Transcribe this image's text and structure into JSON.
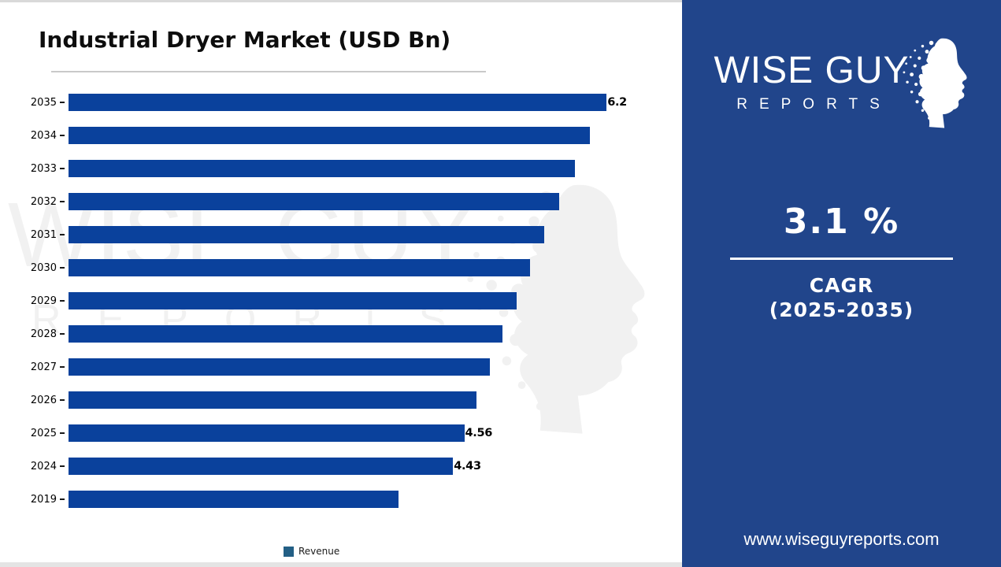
{
  "brand": {
    "line1": "WISE GUY",
    "line2": "REPORTS",
    "website": "www.wiseguyreports.com"
  },
  "panel": {
    "bg_color": "#21458b",
    "cagr_value": "3.1 %",
    "cagr_label": "CAGR",
    "cagr_period": "(2025-2035)"
  },
  "chart_data": {
    "type": "bar",
    "orientation": "horizontal",
    "title": "Industrial Dryer Market (USD Bn)",
    "xlabel": "",
    "ylabel": "",
    "categories": [
      "2035",
      "2034",
      "2033",
      "2032",
      "2031",
      "2030",
      "2029",
      "2028",
      "2027",
      "2026",
      "2025",
      "2024",
      "2019"
    ],
    "values": [
      6.2,
      6.01,
      5.83,
      5.65,
      5.48,
      5.32,
      5.16,
      5.0,
      4.85,
      4.7,
      4.56,
      4.43,
      3.8
    ],
    "value_labels": {
      "2035": "6.2",
      "2025": "4.56",
      "2024": "4.43"
    },
    "xlim": [
      0,
      6.65
    ],
    "grid": false,
    "bar_color": "#0a419c",
    "legend": {
      "label": "Revenue",
      "marker_color": "#235f85",
      "position": "bottom"
    }
  }
}
